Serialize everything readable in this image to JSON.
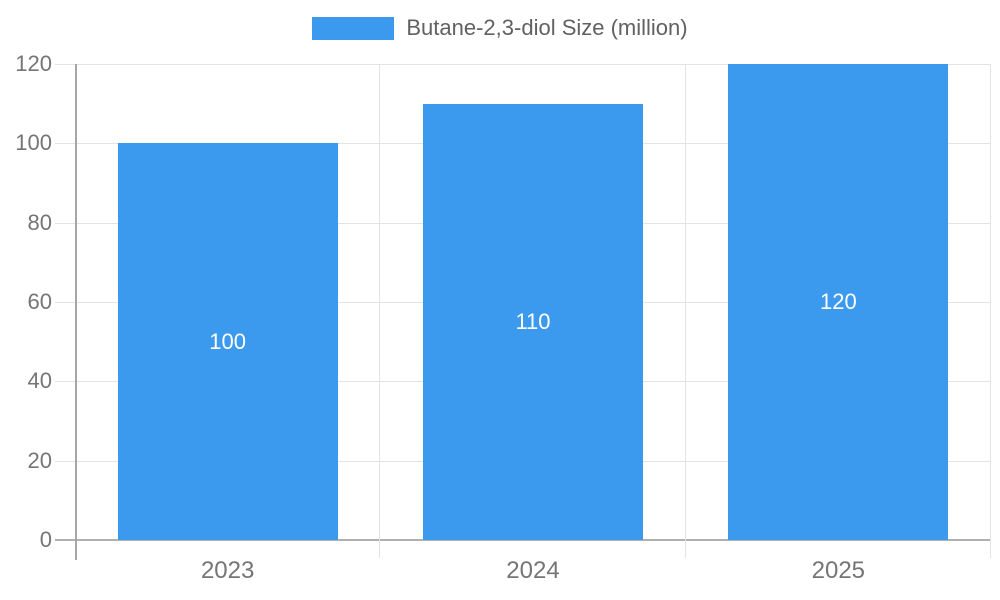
{
  "chart_data": {
    "type": "bar",
    "title": "Butane-2,3-diol Size (million)",
    "categories": [
      "2023",
      "2024",
      "2025"
    ],
    "series": [
      {
        "name": "Butane-2,3-diol Size (million)",
        "values": [
          100,
          110,
          120
        ]
      }
    ],
    "data_labels": [
      "100",
      "110",
      "120"
    ],
    "xlabel": "",
    "ylabel": "",
    "ylim": [
      0,
      120
    ],
    "yticks": [
      0,
      20,
      40,
      60,
      80,
      100,
      120
    ],
    "grid": "on",
    "legend_position": "top",
    "data_label_position": "inside-center"
  },
  "legend": {
    "label": "Butane-2,3-diol Size (million)"
  },
  "colors": {
    "bar": "#3B99EE",
    "axis_line": "#a6a6a6",
    "baseline": "#b0b0b0",
    "gridline": "#e3e3e3",
    "tick_label": "#757575",
    "legend_text": "#616161",
    "data_label": "#ffffff",
    "background": "#ffffff"
  }
}
